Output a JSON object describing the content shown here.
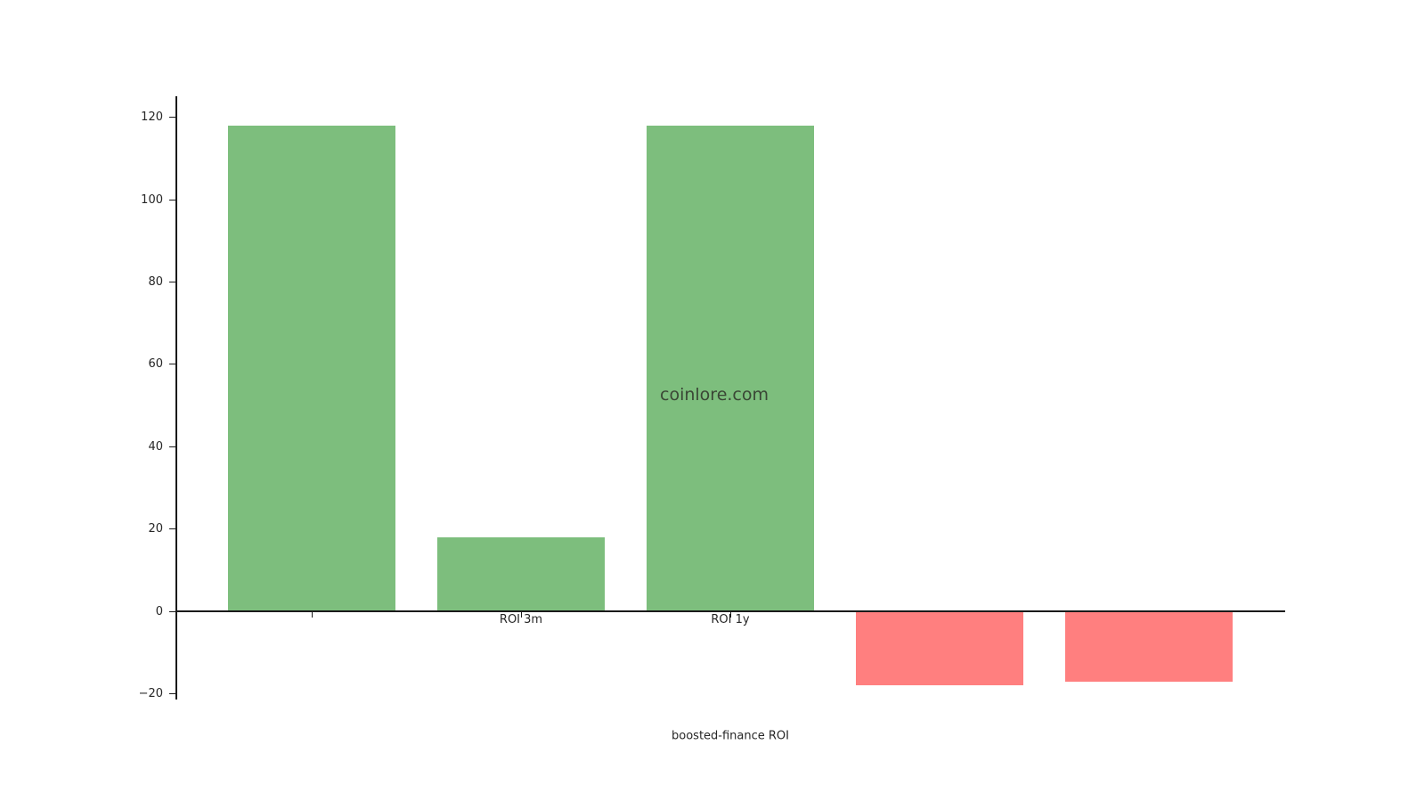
{
  "watermark": "coinlore.com",
  "title": "boosted-finance ROI",
  "colors": {
    "positive_bar": "#7dbe7d",
    "negative_bar": "#ff7f7f",
    "axis": "#1a1a1a",
    "tick_text": "#262626",
    "watermark_text": "#3a4635"
  },
  "chart_data": {
    "type": "bar",
    "title": "boosted-finance ROI",
    "categories": [
      "",
      "ROI 3m",
      "ROI 1y",
      "",
      ""
    ],
    "values": [
      118,
      18,
      118,
      -18,
      -17
    ],
    "bar_colors_rule": "green for positive, red for negative",
    "xlabel": "",
    "ylabel": "",
    "ylim": [
      -21.5,
      125
    ],
    "yticks": [
      -20,
      0,
      20,
      40,
      60,
      80,
      100,
      120
    ],
    "grid": false,
    "legend": null,
    "watermark": "coinlore.com",
    "notes": "x tick labels for bars 1, 4 and 5 are not visible; negative bars cover their tick marks"
  }
}
